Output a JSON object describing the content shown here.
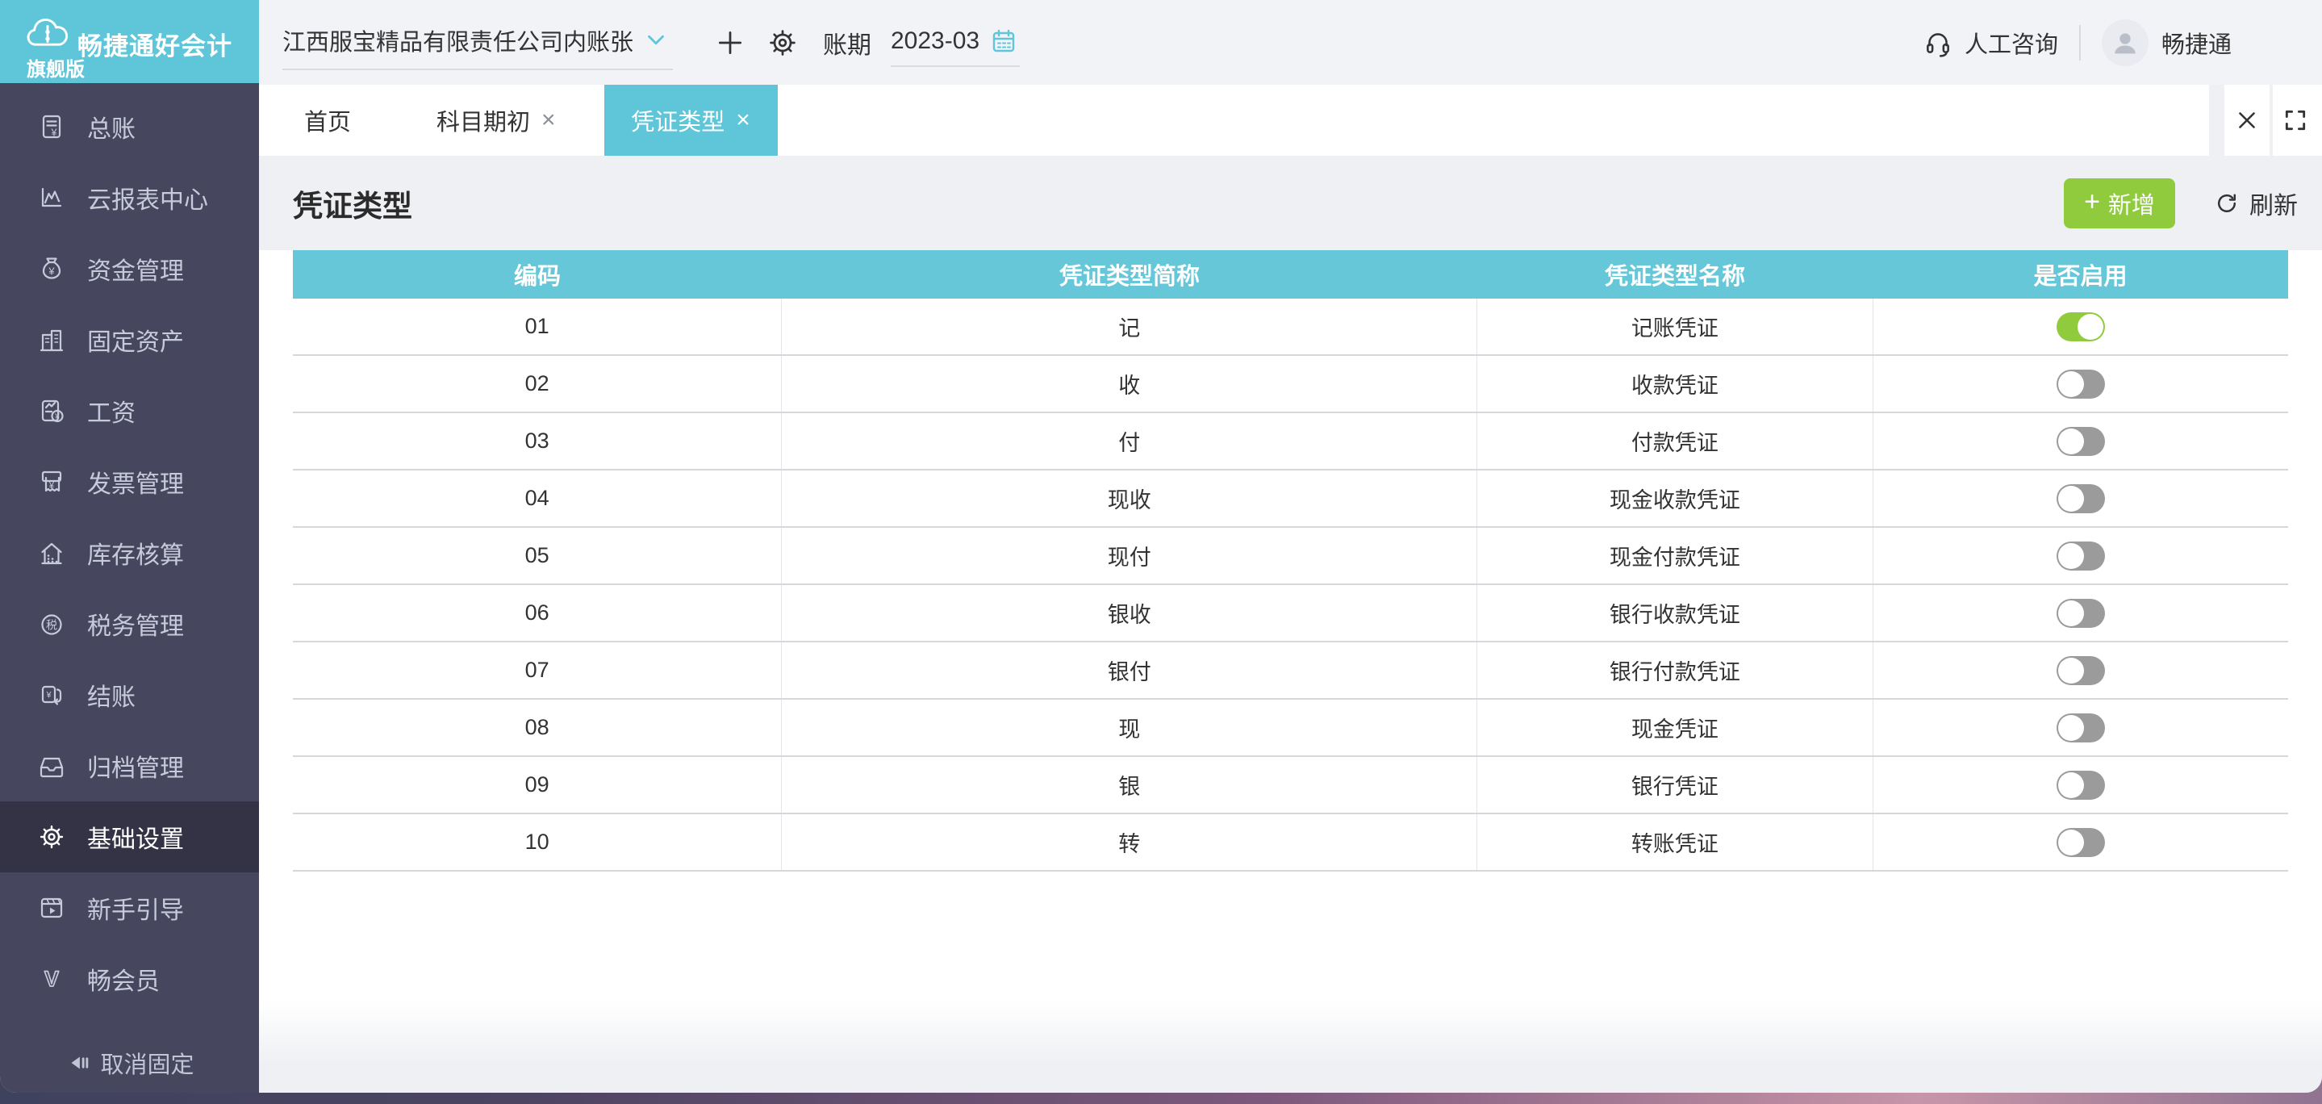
{
  "brand": {
    "title": "畅捷通好会计",
    "subtitle": "旗舰版",
    "logo_icon": "cloud-logo"
  },
  "sidebar": {
    "items": [
      {
        "label": "总账",
        "icon": "ledger",
        "active": false
      },
      {
        "label": "云报表中心",
        "icon": "report",
        "active": false
      },
      {
        "label": "资金管理",
        "icon": "funds",
        "active": false
      },
      {
        "label": "固定资产",
        "icon": "asset",
        "active": false
      },
      {
        "label": "工资",
        "icon": "salary",
        "active": false
      },
      {
        "label": "发票管理",
        "icon": "invoice",
        "active": false
      },
      {
        "label": "库存核算",
        "icon": "inventory",
        "active": false
      },
      {
        "label": "税务管理",
        "icon": "tax",
        "active": false
      },
      {
        "label": "结账",
        "icon": "closing",
        "active": false
      },
      {
        "label": "归档管理",
        "icon": "archive",
        "active": false
      },
      {
        "label": "基础设置",
        "icon": "settings",
        "active": true
      },
      {
        "label": "新手引导",
        "icon": "guide",
        "active": false
      },
      {
        "label": "畅会员",
        "icon": "member",
        "active": false
      }
    ],
    "unpin_label": "取消固定"
  },
  "topbar": {
    "company": "江西服宝精品有限责任公司内账张",
    "period_label": "账期",
    "period_value": "2023-03",
    "consult_label": "人工咨询",
    "user_name": "畅捷通"
  },
  "tabs": [
    {
      "label": "首页",
      "closable": false,
      "active": false
    },
    {
      "label": "科目期初",
      "closable": true,
      "active": false
    },
    {
      "label": "凭证类型",
      "closable": true,
      "active": true
    }
  ],
  "page": {
    "title": "凭证类型",
    "add_label": "新增",
    "refresh_label": "刷新"
  },
  "table": {
    "columns": [
      "编码",
      "凭证类型简称",
      "凭证类型名称",
      "是否启用"
    ],
    "rows": [
      {
        "code": "01",
        "short_name": "记",
        "name": "记账凭证",
        "enabled": true
      },
      {
        "code": "02",
        "short_name": "收",
        "name": "收款凭证",
        "enabled": false
      },
      {
        "code": "03",
        "short_name": "付",
        "name": "付款凭证",
        "enabled": false
      },
      {
        "code": "04",
        "short_name": "现收",
        "name": "现金收款凭证",
        "enabled": false
      },
      {
        "code": "05",
        "short_name": "现付",
        "name": "现金付款凭证",
        "enabled": false
      },
      {
        "code": "06",
        "short_name": "银收",
        "name": "银行收款凭证",
        "enabled": false
      },
      {
        "code": "07",
        "short_name": "银付",
        "name": "银行付款凭证",
        "enabled": false
      },
      {
        "code": "08",
        "short_name": "现",
        "name": "现金凭证",
        "enabled": false
      },
      {
        "code": "09",
        "short_name": "银",
        "name": "银行凭证",
        "enabled": false
      },
      {
        "code": "10",
        "short_name": "转",
        "name": "转账凭证",
        "enabled": false
      }
    ]
  },
  "colors": {
    "accent_cyan": "#5ec6d8",
    "table_header_cyan": "#66c7d9",
    "action_green": "#8fcb3d",
    "toggle_off_gray": "#9b9b9b",
    "sidebar_bg": "#47465f",
    "sidebar_active_bg": "#343346"
  }
}
